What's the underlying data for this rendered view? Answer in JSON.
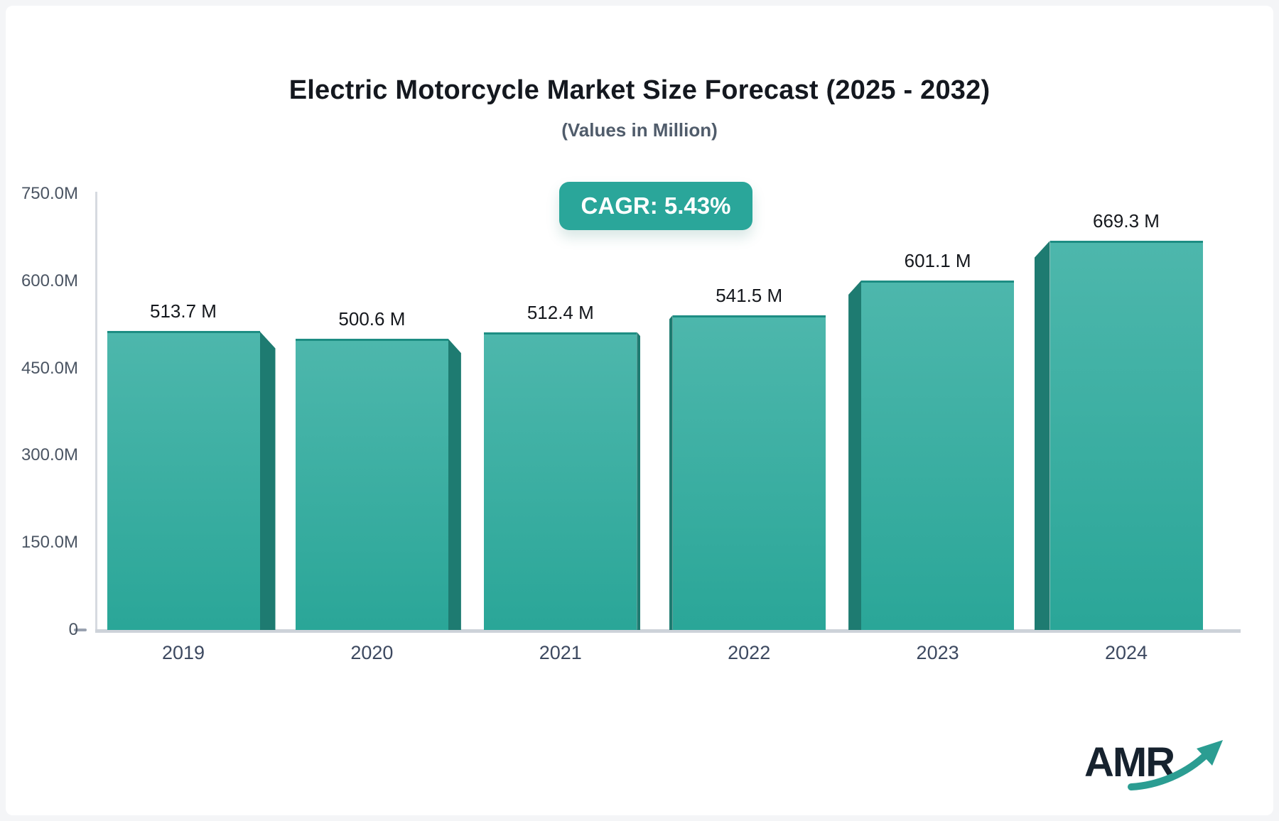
{
  "header": {
    "title": "Electric Motorcycle Market Size Forecast (2025 - 2032)",
    "subtitle": "(Values in Million)"
  },
  "badge": {
    "label": "CAGR: 5.43%",
    "background": "#2aa69a",
    "text_color": "#ffffff"
  },
  "chart_data": {
    "type": "bar",
    "title": "Electric Motorcycle Market Size Forecast (2025 - 2032)",
    "subtitle": "(Values in Million)",
    "categories": [
      "2019",
      "2020",
      "2021",
      "2022",
      "2023",
      "2024"
    ],
    "values": [
      513.7,
      500.6,
      512.4,
      541.5,
      601.1,
      669.3
    ],
    "value_labels": [
      "513.7 M",
      "500.6 M",
      "512.4 M",
      "541.5 M",
      "601.1 M",
      "669.3 M"
    ],
    "unit": "Million",
    "cagr_label": "CAGR: 5.43%",
    "ylim": [
      0,
      750
    ],
    "yticks": [
      0,
      150,
      300,
      450,
      600,
      750
    ],
    "ytick_labels": [
      "0",
      "150.0M",
      "300.0M",
      "450.0M",
      "600.0M",
      "750.0M"
    ],
    "grid": false,
    "legend": "none",
    "bar_color_top": "#4db7ac",
    "bar_color_bottom": "#2aa698",
    "bar_side_color": "#1e7b71",
    "bar_top_edge_color": "#1d8d83",
    "axis_color": "#cdd2d9",
    "tick_text_color": "#4b5563"
  },
  "logo": {
    "text": "AMR",
    "text_color": "#16222e",
    "arrow_color": "#2b9d92"
  }
}
